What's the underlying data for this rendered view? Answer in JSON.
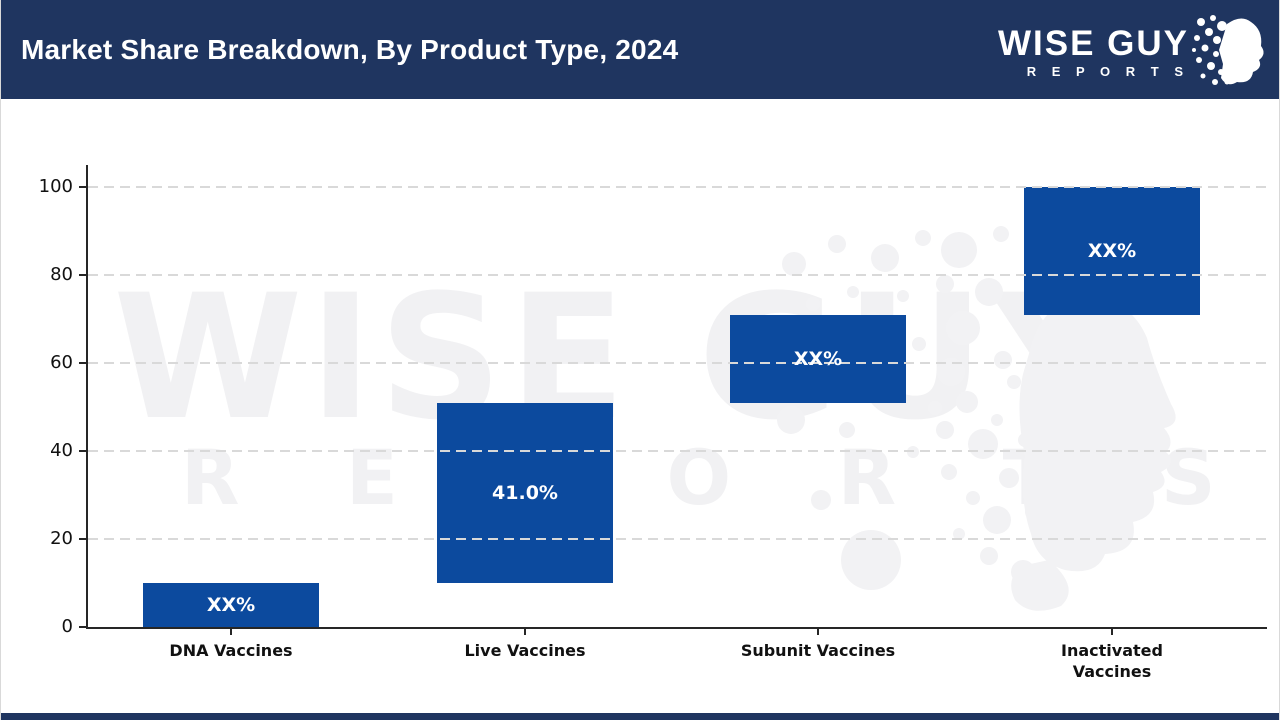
{
  "header": {
    "title": "Market Share Breakdown, By Product Type, 2024",
    "logo_line1": "WISE GUY",
    "logo_line2": "R E P O R T S"
  },
  "watermark": {
    "line1": "WISE GUY",
    "line2": "R E P O R T S"
  },
  "chart_data": {
    "type": "bar",
    "variant": "floating-segment-waterfall",
    "title": "Market Share Breakdown, By Product Type, 2024",
    "categories": [
      "DNA Vaccines",
      "Live Vaccines",
      "Subunit Vaccines",
      "Inactivated\nVaccines"
    ],
    "segments": [
      {
        "category": "DNA Vaccines",
        "start": 0,
        "end": 10,
        "label": "XX%"
      },
      {
        "category": "Live Vaccines",
        "start": 10,
        "end": 51,
        "label": "41.0%"
      },
      {
        "category": "Subunit Vaccines",
        "start": 51,
        "end": 71,
        "label": "XX%"
      },
      {
        "category": "Inactivated Vaccines",
        "start": 71,
        "end": 100,
        "label": "XX%"
      }
    ],
    "yticks": [
      0,
      20,
      40,
      60,
      80,
      100
    ],
    "ylim": [
      0,
      105
    ],
    "grid": "horizontal-dashed",
    "legend": "none",
    "colors": {
      "bar": "#0c4a9e",
      "header_bg": "#1f3560",
      "gridline": "#d9d9d9",
      "axis": "#262626",
      "bar_label": "#ffffff",
      "watermark": "#f1f1f3"
    }
  }
}
